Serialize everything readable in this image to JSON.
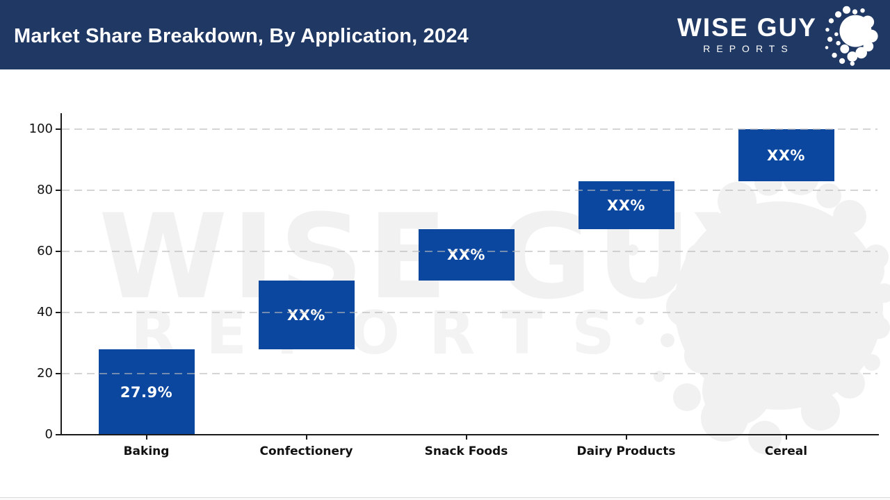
{
  "header": {
    "title": "Market Share Breakdown, By Application, 2024",
    "logo": {
      "line1": "WISE GUY",
      "line2": "REPORTS"
    },
    "bg_color": "#203864"
  },
  "watermark": {
    "line1": "WISE GUY",
    "line2": "REPORTS"
  },
  "chart_data": {
    "type": "bar",
    "subtype": "waterfall",
    "title": "Market Share Breakdown, By Application, 2024",
    "categories": [
      "Baking",
      "Confectionery",
      "Snack Foods",
      "Dairy Products",
      "Cereal"
    ],
    "segments": [
      {
        "category": "Baking",
        "start": 0,
        "end": 27.9,
        "value": 27.9,
        "label": "27.9%"
      },
      {
        "category": "Confectionery",
        "start": 27.9,
        "end": 50.4,
        "value": 22.5,
        "label": "XX%"
      },
      {
        "category": "Snack Foods",
        "start": 50.4,
        "end": 67.2,
        "value": 16.8,
        "label": "XX%"
      },
      {
        "category": "Dairy Products",
        "start": 67.2,
        "end": 82.9,
        "value": 15.7,
        "label": "XX%"
      },
      {
        "category": "Cereal",
        "start": 82.9,
        "end": 100,
        "value": 17.1,
        "label": "XX%"
      }
    ],
    "y_ticks": [
      0,
      20,
      40,
      60,
      80,
      100
    ],
    "ylim": [
      0,
      100
    ],
    "xlabel": "",
    "ylabel": "",
    "bar_color": "#0b479e",
    "grid": "dashed horizontal",
    "legend": "none"
  }
}
